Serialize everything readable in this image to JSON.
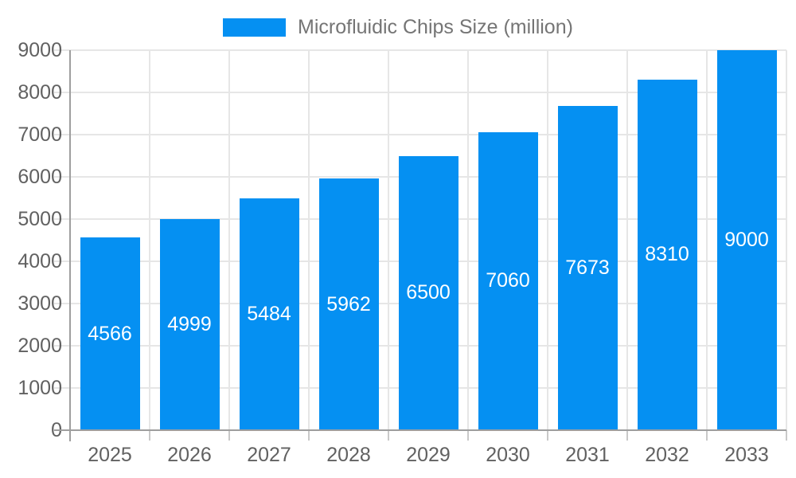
{
  "legend": {
    "label": "Microfluidic Chips Size (million)"
  },
  "chart_data": {
    "type": "bar",
    "title": "Microfluidic Chips Size (million)",
    "categories": [
      "2025",
      "2026",
      "2027",
      "2028",
      "2029",
      "2030",
      "2031",
      "2032",
      "2033"
    ],
    "values": [
      4566,
      4999,
      5484,
      5962,
      6500,
      7060,
      7673,
      8310,
      9000
    ],
    "xlabel": "",
    "ylabel": "",
    "ylim": [
      0,
      9000
    ],
    "ytick_step": 1000,
    "ytick_labels": [
      "0",
      "1000",
      "2000",
      "3000",
      "4000",
      "5000",
      "6000",
      "7000",
      "8000",
      "9000"
    ],
    "grid": true,
    "legend_position": "top",
    "bar_labels_inside": true
  },
  "colors": {
    "bar": "#0590f2",
    "bar_label": "#ffffff",
    "gridline": "#e6e6e6",
    "axis": "#9e9e9e",
    "minor_tick": "#c9c9c9",
    "tick_label": "#616161",
    "legend_text": "#757575",
    "background": "#ffffff"
  }
}
